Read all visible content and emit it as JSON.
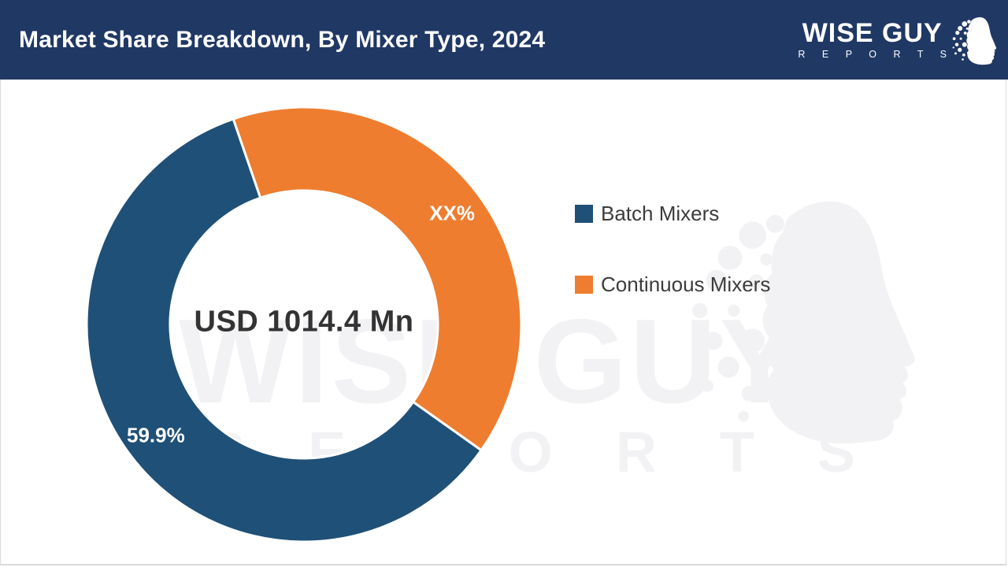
{
  "header": {
    "title": "Market Share Breakdown, By Mixer Type, 2024",
    "logo": {
      "brand": "WISE GUY",
      "sub": "R E P O R T S",
      "face_icon": "face-profile-dots"
    }
  },
  "chart_data": {
    "type": "pie",
    "subtype": "donut",
    "title": "Market Share Breakdown, By Mixer Type, 2024",
    "center_label": "USD 1014.4 Mn",
    "start_angle_deg": -19,
    "direction": "clockwise",
    "legend_position": "right",
    "slices": [
      {
        "label": "Continuous Mixers",
        "value_pct": 40.1,
        "display": "XX%",
        "color": "#ee7d2f"
      },
      {
        "label": "Batch Mixers",
        "value_pct": 59.9,
        "display": "59.9%",
        "color": "#1f5077"
      }
    ],
    "legend": [
      {
        "label": "Batch Mixers",
        "color": "#1f5077"
      },
      {
        "label": "Continuous Mixers",
        "color": "#ee7d2f"
      }
    ]
  },
  "watermark": {
    "line1": "WISE GUY",
    "line2": "R E P O R T S",
    "face_icon": "face-profile-dots",
    "color": "#f2f2f4"
  },
  "colors": {
    "header_bg": "#203864",
    "header_text": "#ffffff",
    "batch_blue": "#1f5077",
    "continuous_orange": "#ee7d2f",
    "center_text": "#333333",
    "legend_text": "#3c3c3c",
    "frame_border": "#d9d9d9"
  }
}
